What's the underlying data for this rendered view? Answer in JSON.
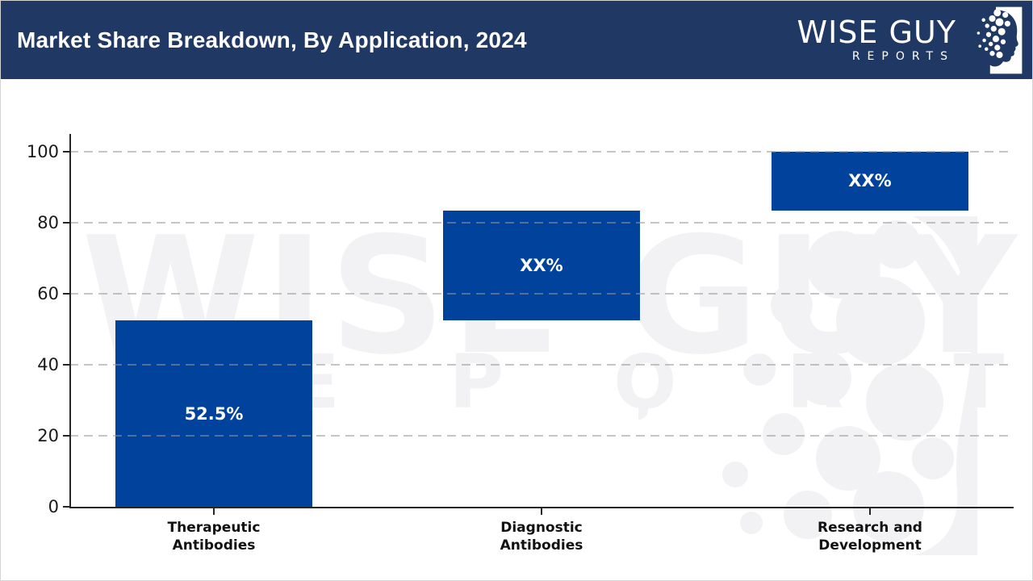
{
  "header": {
    "title": "Market Share Breakdown, By Application, 2024",
    "logo": {
      "line1": "WISE GUY",
      "line2": "REPORTS",
      "head_icon": "dotted-head-profile"
    },
    "background_color": "#203864"
  },
  "watermark": {
    "line1": "WISE GUY",
    "line2": "R E P O R T S"
  },
  "chart_data": {
    "type": "bar",
    "subtype": "stacked-waterfall-percent",
    "title": "Market Share Breakdown, By Application, 2024",
    "categories": [
      "Therapeutic\nAntibodies",
      "Diagnostic\nAntibodies",
      "Research and\nDevelopment"
    ],
    "series": [
      {
        "category": "Therapeutic Antibodies",
        "start": 0,
        "end": 52.5,
        "label": "52.5%"
      },
      {
        "category": "Diagnostic Antibodies",
        "start": 52.5,
        "end": 83.5,
        "label": "XX%"
      },
      {
        "category": "Research and Development",
        "start": 83.5,
        "end": 100,
        "label": "XX%"
      }
    ],
    "xlabel": "",
    "ylabel": "",
    "yticks": [
      0,
      20,
      40,
      60,
      80,
      100
    ],
    "ylim": [
      0,
      105
    ],
    "grid": "dashed-horizontal",
    "legend": "none",
    "bar_color": "#01429c",
    "bar_label_color": "#ffffff",
    "axis_color": "#262626",
    "tick_label_color": "#1a1a1a",
    "gridline_color": "#c8c8c8"
  }
}
